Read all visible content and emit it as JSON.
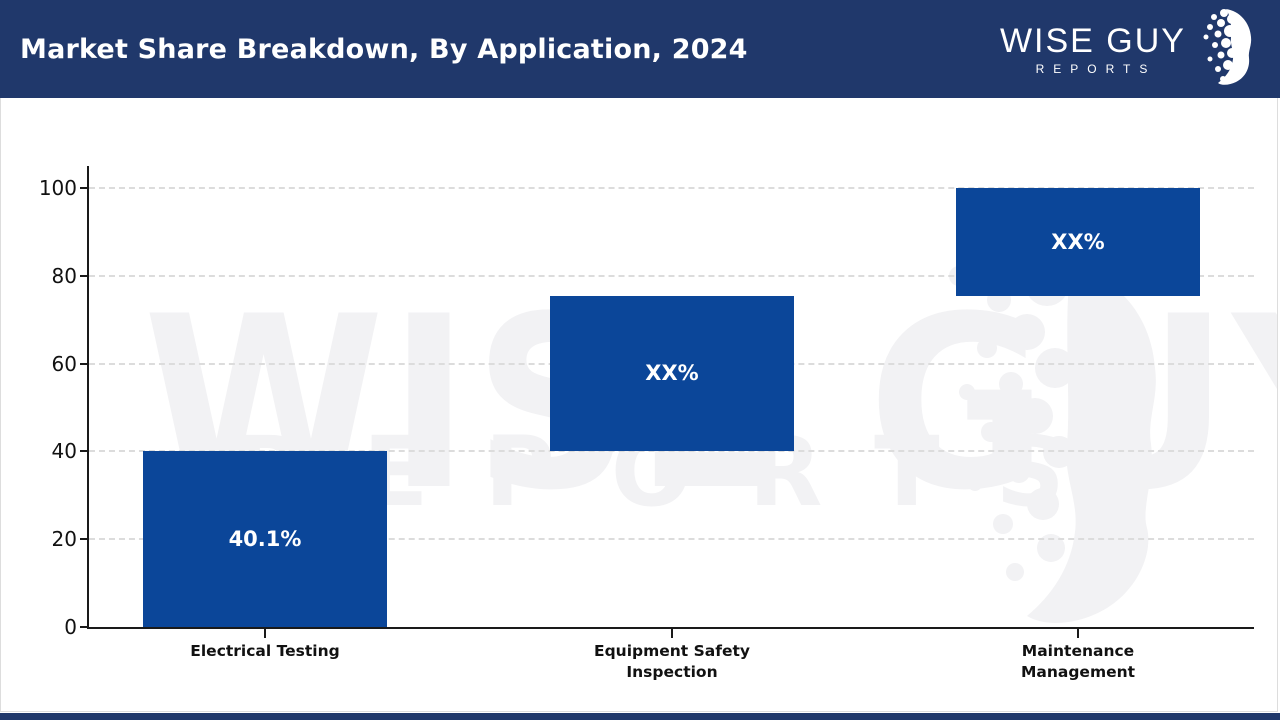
{
  "header": {
    "title": "Market Share Breakdown, By Application, 2024",
    "logo": {
      "line1": "WISE GUY",
      "line2": "REPORTS"
    }
  },
  "watermark": {
    "line1": "WISE GUY",
    "line2": "REPORTS"
  },
  "colors": {
    "header_bg": "#20386b",
    "footer_bg": "#20386b",
    "bar": "#0b4699",
    "grid": "#dcdcdc",
    "axis": "#1a1a1a",
    "watermark": "#f2f2f4",
    "bar_label_text": "#ffffff",
    "title_text": "#ffffff"
  },
  "chart_data": {
    "type": "bar",
    "subtype": "waterfall-floating-bars",
    "title": "Market Share Breakdown, By Application, 2024",
    "xlabel": "",
    "ylabel": "",
    "ylim": [
      0,
      100
    ],
    "yticks": [
      0,
      20,
      40,
      60,
      80,
      100
    ],
    "grid": "horizontal-dashed",
    "legend": "none",
    "categories": [
      "Electrical Testing",
      "Equipment Safety\nInspection",
      "Maintenance\nManagement"
    ],
    "bars": [
      {
        "category": "Electrical Testing",
        "start": 0,
        "end": 40.1,
        "label": "40.1%"
      },
      {
        "category": "Equipment Safety Inspection",
        "start": 40.1,
        "end": 75.4,
        "label": "XX%"
      },
      {
        "category": "Maintenance Management",
        "start": 75.5,
        "end": 100,
        "label": "XX%"
      }
    ]
  }
}
